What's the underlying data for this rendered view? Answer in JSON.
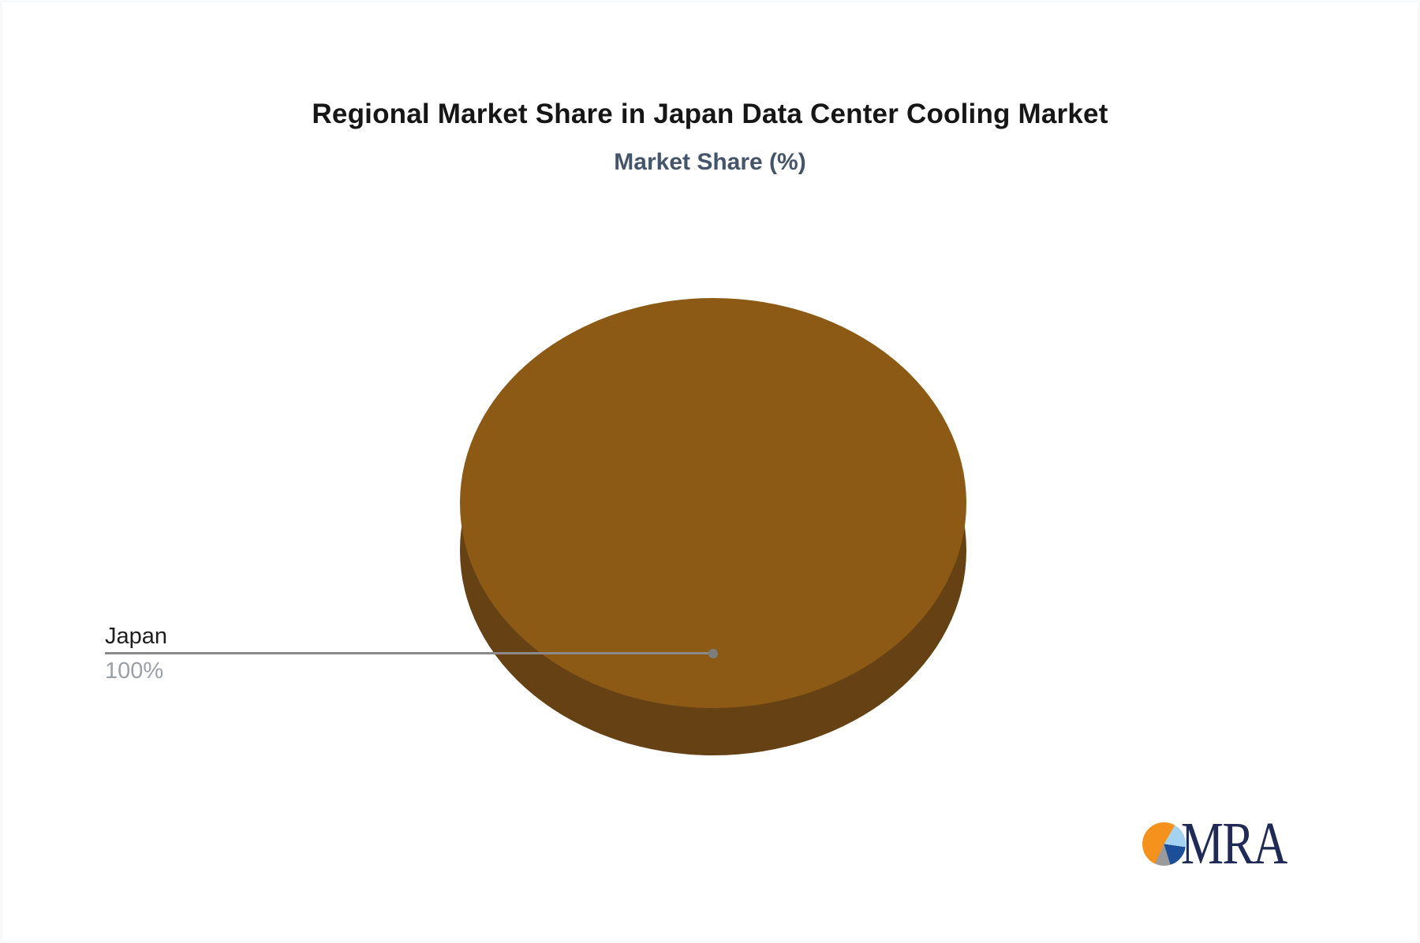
{
  "header": {
    "title": "Regional Market Share in Japan Data Center Cooling Market",
    "subtitle": "Market Share (%)"
  },
  "chart_data": {
    "type": "pie",
    "style": "3d",
    "title": "Regional Market Share in Japan Data Center Cooling Market",
    "subtitle": "Market Share (%)",
    "unit": "%",
    "categories": [
      "Japan"
    ],
    "values": [
      100
    ],
    "series": [
      {
        "name": "Japan",
        "value": 100,
        "label": "Japan",
        "value_label": "100%"
      }
    ],
    "legend": "none",
    "colors": {
      "slice_top": "#8d5a16",
      "slice_side": "#654114",
      "leader_line": "#8a8a8a"
    }
  },
  "callout": {
    "label": "Japan",
    "value": "100%"
  },
  "logo": {
    "text": "MRA",
    "colors": {
      "orange": "#f5921e",
      "light_blue": "#a3d3f0",
      "dark_blue": "#1d4e9a",
      "gray": "#9b9b9b",
      "text_navy": "#1f2a56"
    }
  }
}
